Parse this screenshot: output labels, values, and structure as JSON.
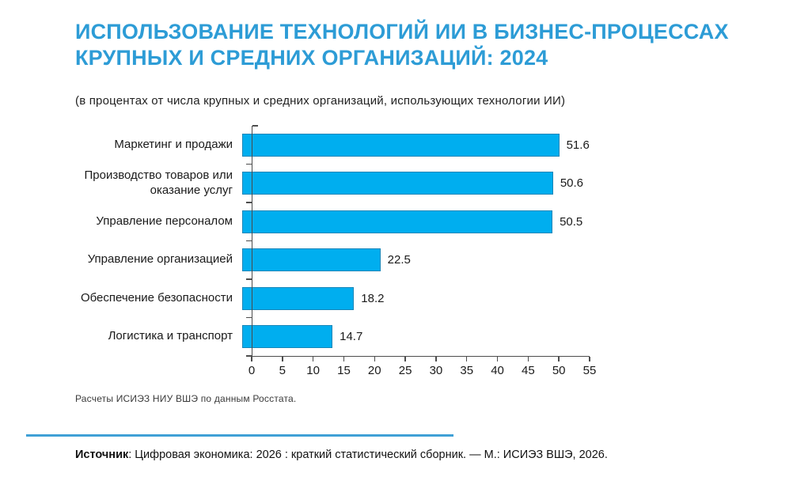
{
  "header": {
    "title_line1": "ИСПОЛЬЗОВАНИЕ ТЕХНОЛОГИЙ ИИ В БИЗНЕС-ПРОЦЕССАХ",
    "title_line2": "КРУПНЫХ И СРЕДНИХ ОРГАНИЗАЦИЙ: 2024",
    "subtitle": "(в процентах от числа крупных и средних организаций, использующих технологии ИИ)"
  },
  "chart_data": {
    "type": "bar",
    "orientation": "horizontal",
    "categories": [
      "Маркетинг и продажи",
      "Производство товаров или оказание услуг",
      "Управление персоналом",
      "Управление организацией",
      "Обеспечение безопасности",
      "Логистика и транспорт"
    ],
    "values": [
      51.6,
      50.6,
      50.5,
      22.5,
      18.2,
      14.7
    ],
    "value_labels": [
      "51.6",
      "50.6",
      "50.5",
      "22.5",
      "18.2",
      "14.7"
    ],
    "xlim": [
      0,
      55
    ],
    "xticks": [
      0,
      5,
      10,
      15,
      20,
      25,
      30,
      35,
      40,
      45,
      50,
      55
    ],
    "grid": false,
    "legend": null,
    "title": "ИСПОЛЬЗОВАНИЕ ТЕХНОЛОГИЙ ИИ В БИЗНЕС-ПРОЦЕССАХ КРУПНЫХ И СРЕДНИХ ОРГАНИЗАЦИЙ: 2024",
    "xlabel": "",
    "ylabel": ""
  },
  "colors": {
    "title": "#2D9CD6",
    "bar_fill": "#00AEEF",
    "bar_border": "#1586B8",
    "axis": "#4D4D4D",
    "divider": "#3FA0D6"
  },
  "footer": {
    "note": "Расчеты ИСИЭЗ НИУ ВШЭ по данным Росстата.",
    "source_label": "Источник",
    "source_text": ": Цифровая экономика: 2026 : краткий статистический сборник. — М.: ИСИЭЗ ВШЭ, 2026."
  }
}
